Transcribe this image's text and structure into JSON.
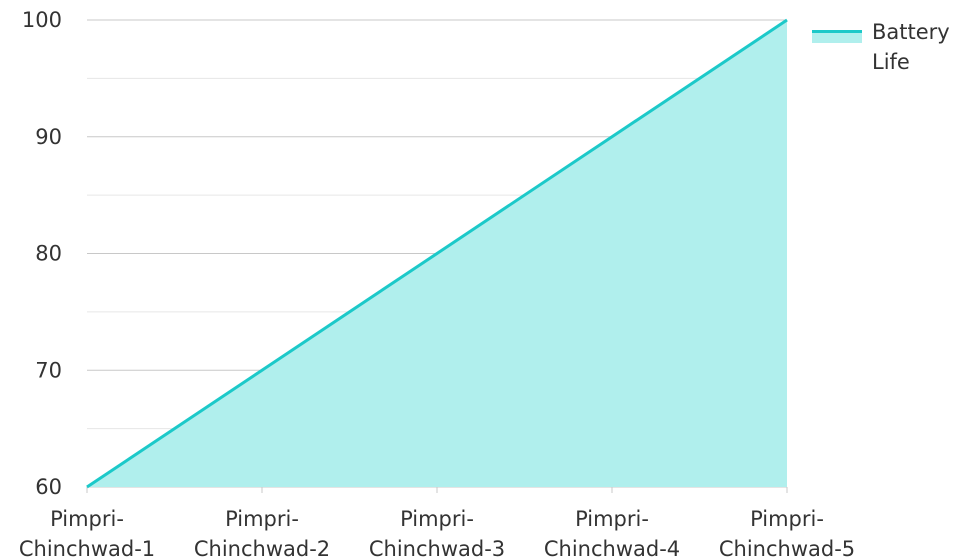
{
  "chart_data": {
    "type": "area",
    "categories": [
      "Pimpri-Chinchwad-1",
      "Pimpri-Chinchwad-2",
      "Pimpri-Chinchwad-3",
      "Pimpri-Chinchwad-4",
      "Pimpri-Chinchwad-5"
    ],
    "series": [
      {
        "name": "Battery Life",
        "values": [
          60,
          70,
          80,
          90,
          100
        ],
        "color": "#1cc9c9",
        "fill": "#b0efed"
      }
    ],
    "ylim": [
      60,
      100
    ],
    "yticks": [
      60,
      70,
      80,
      90,
      100
    ],
    "ytick_labels": [
      "60",
      "70",
      "80",
      "90",
      "100"
    ],
    "grid": true,
    "minor_grid": true,
    "legend_position": "top-right",
    "title": "",
    "xlabel": "",
    "ylabel": ""
  }
}
